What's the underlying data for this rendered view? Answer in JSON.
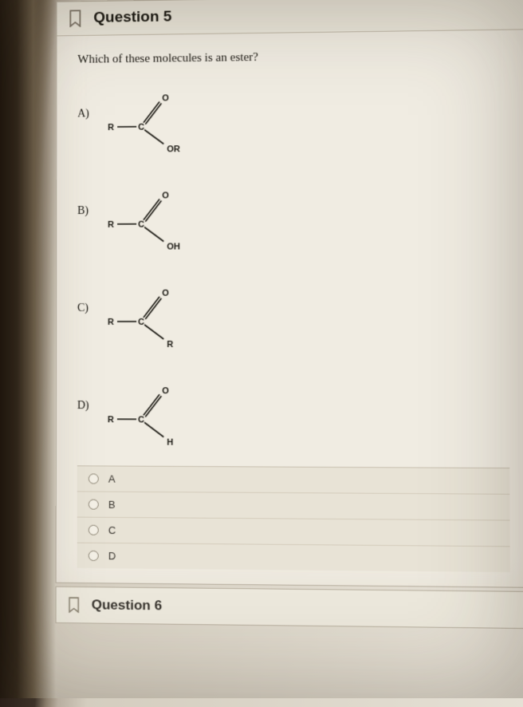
{
  "question": {
    "number": "Question 5",
    "prompt": "Which of these molecules is an ester?",
    "options": [
      {
        "letter": "A)",
        "left_group": "R",
        "right_group": "OR"
      },
      {
        "letter": "B)",
        "left_group": "R",
        "right_group": "OH"
      },
      {
        "letter": "C)",
        "left_group": "R",
        "right_group": "R"
      },
      {
        "letter": "D)",
        "left_group": "R",
        "right_group": "H"
      }
    ],
    "answers": [
      "A",
      "B",
      "C",
      "D"
    ]
  },
  "next_question": "Question 6",
  "molecule_style": {
    "atom_O": "O",
    "atom_C": "C",
    "line_color": "#1a1812",
    "line_width": 1.6,
    "dbl_gap": 3
  }
}
